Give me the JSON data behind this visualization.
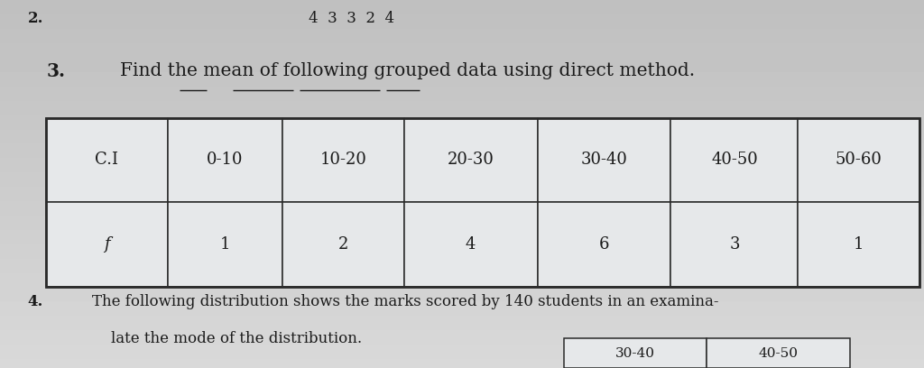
{
  "top_text": "4 3 3 2 4",
  "top_text2": "2.",
  "title_number": "3.",
  "title_text": "Find the mean of following grouped data using direct method.",
  "title_underline_words": [
    "mean",
    "following",
    "grouped data",
    "using"
  ],
  "table_headers": [
    "C.I",
    "0-10",
    "10-20",
    "20-30",
    "30-40",
    "40-50",
    "50-60"
  ],
  "table_row_label": "f",
  "table_values": [
    "1",
    "2",
    "4",
    "6",
    "3",
    "1"
  ],
  "subtitle_num": "4.",
  "subtitle_text": "The following distribution shows the marks scored by 140 students in an examina-",
  "subtitle2": "    late the mode of the distribution.",
  "footer_labels": [
    "30-40",
    "40-50"
  ],
  "bg_color_top": "#c8cdd4",
  "bg_color_bottom": "#d0d5db",
  "page_color": "#e8eaec",
  "cell_color": "#eaecee",
  "text_color": "#1a1a1a",
  "border_color": "#2a2a2a",
  "title_fontsize": 14.5,
  "table_fontsize": 13,
  "sub_fontsize": 12
}
